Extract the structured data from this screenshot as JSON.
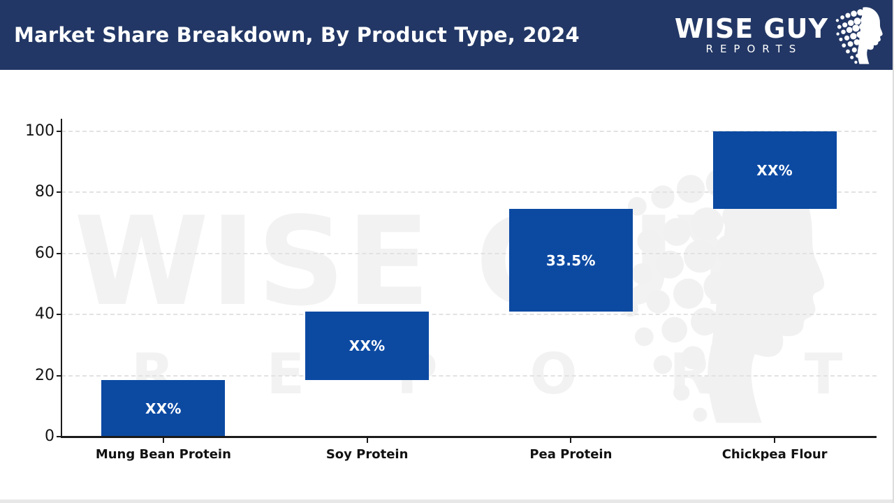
{
  "header": {
    "title": "Market Share Breakdown, By Product Type, 2024",
    "logo": {
      "line1": "WISE GUY",
      "line2": "REPORTS"
    }
  },
  "watermark": {
    "line1": "WISE GUY",
    "line2": "R E P O R T S"
  },
  "chart_data": {
    "type": "bar",
    "subtype": "floating-segment-waterfall",
    "title": "Market Share Breakdown, By Product Type, 2024",
    "categories": [
      "Mung Bean Protein",
      "Soy Protein",
      "Pea Protein",
      "Chickpea Flour"
    ],
    "segments": [
      {
        "category": "Mung Bean Protein",
        "start": 0,
        "end": 18.5,
        "value_label": "XX%"
      },
      {
        "category": "Soy Protein",
        "start": 18.5,
        "end": 41,
        "value_label": "XX%"
      },
      {
        "category": "Pea Protein",
        "start": 41,
        "end": 74.5,
        "value_label": "33.5%"
      },
      {
        "category": "Chickpea Flour",
        "start": 74.5,
        "end": 100,
        "value_label": "XX%"
      }
    ],
    "xlabel": "",
    "ylabel": "",
    "ylim": [
      0,
      100
    ],
    "yticks": [
      0,
      20,
      40,
      60,
      80,
      100
    ],
    "grid": "horizontal-dashed",
    "legend": "none",
    "bar_color": "#0c4aa2",
    "label_color": "#ffffff"
  },
  "colors": {
    "header_bg": "#223765",
    "header_text": "#ffffff",
    "bar_fill": "#0c4aa2",
    "gridline": "#e2e2e2",
    "axis": "#1a1a1a",
    "watermark": "#f2f2f2",
    "background": "#ffffff"
  }
}
